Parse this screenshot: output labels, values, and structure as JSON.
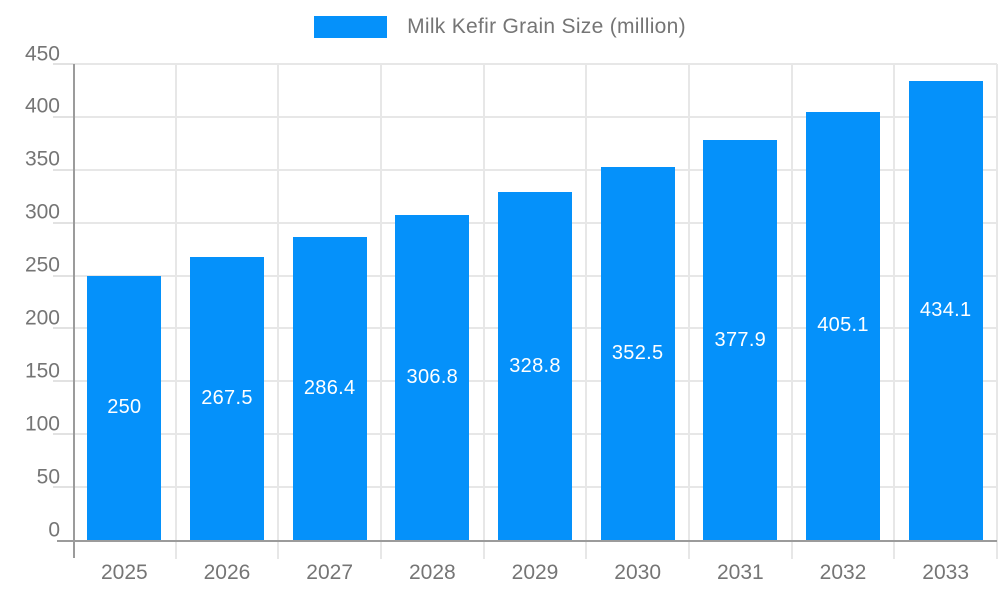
{
  "chart_data": {
    "type": "bar",
    "title": "Milk Kefir Grain Size (million)",
    "legend_position": "top",
    "categories": [
      "2025",
      "2026",
      "2027",
      "2028",
      "2029",
      "2030",
      "2031",
      "2032",
      "2033"
    ],
    "values": [
      250,
      267.5,
      286.4,
      306.8,
      328.8,
      352.5,
      377.9,
      405.1,
      434.1
    ],
    "value_labels": [
      "250",
      "267.5",
      "286.4",
      "306.8",
      "328.8",
      "352.5",
      "377.9",
      "405.1",
      "434.1"
    ],
    "data_label_position": "inside-center",
    "xlabel": "",
    "ylabel": "",
    "ylim": [
      0,
      450
    ],
    "yticks": [
      "0",
      "50",
      "100",
      "150",
      "200",
      "250",
      "300",
      "350",
      "400",
      "450"
    ],
    "grid": true,
    "colors": {
      "bar": "#0591fa",
      "bar_label": "#ffffff",
      "axis": "#9b9b9b",
      "grid": "#e7e7e7",
      "tick_text": "#757575",
      "legend_text": "#757575",
      "background": "#ffffff"
    }
  }
}
